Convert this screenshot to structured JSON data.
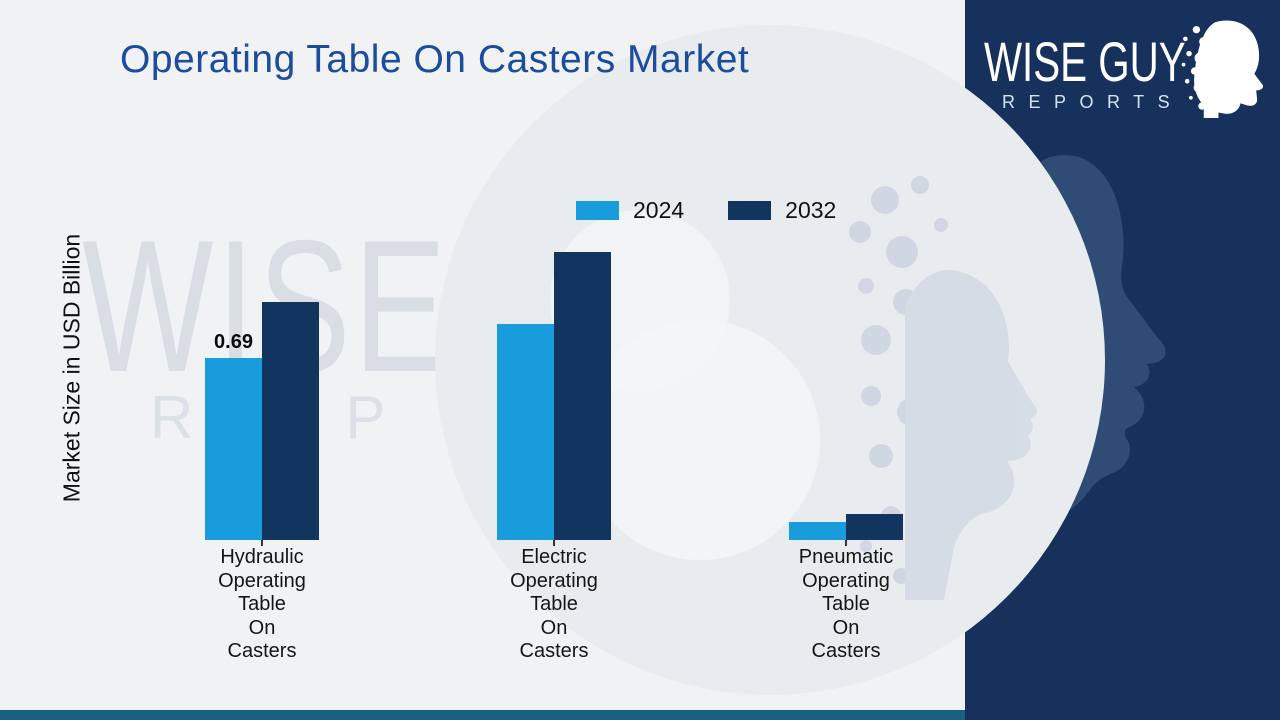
{
  "logo": {
    "line1": "WISE GUY",
    "line2": "REPORTS"
  },
  "watermark": {
    "line1": "WISE GUY",
    "line2": "REPORTS"
  },
  "palette": {
    "title_blue": "#1b4d9c",
    "bar_2024": "#189cdb",
    "bar_2032": "#123560",
    "panel_navy": "#16325c",
    "panel_face_blue": "#2e4c76",
    "panel_circle_light": "#e9ecef",
    "watermark_gray": "#d9dde4",
    "footer_teal": "#1a5f7e"
  },
  "chart_data": {
    "type": "bar",
    "title": "Operating Table On Casters Market",
    "xlabel": "",
    "ylabel": "Market Size in USD Billion",
    "categories": [
      "Hydraulic Operating Table On Casters",
      "Electric Operating Table On Casters",
      "Pneumatic Operating Table On Casters"
    ],
    "series": [
      {
        "name": "2024",
        "color": "#189cdb",
        "values": [
          0.69,
          0.82,
          0.07
        ]
      },
      {
        "name": "2032",
        "color": "#123560",
        "values": [
          0.9,
          1.09,
          0.1
        ]
      }
    ],
    "value_labels": [
      {
        "series_index": 0,
        "category_index": 0,
        "text": "0.69"
      }
    ],
    "ylim": [
      0,
      1.2
    ],
    "grid": false,
    "legend_position": "top-center",
    "category_label_wrap": "one-word-per-line"
  }
}
